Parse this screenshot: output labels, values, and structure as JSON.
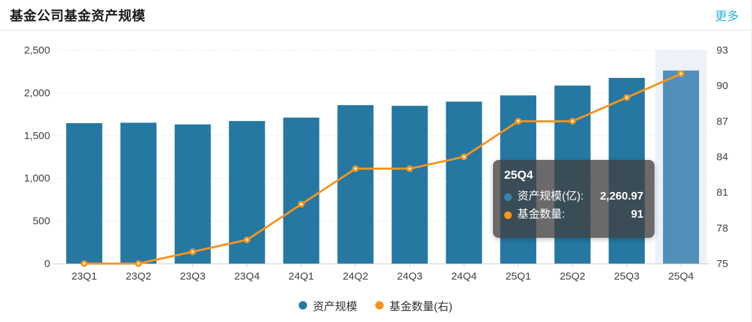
{
  "header": {
    "title": "基金公司基金资产规模",
    "more_label": "更多"
  },
  "colors": {
    "bar": "#2478a2",
    "bar_highlight": "#4f8fba",
    "highlight_band": "#edf2f8",
    "line": "#f7941e",
    "point_center": "#ffffff",
    "grid": "#dce3f3",
    "axis_line": "#cccccc",
    "axis_text": "#404040",
    "more_link": "#29b0d8",
    "tooltip_bar_dot": "#3186ad",
    "tooltip_line_dot": "#f7941e"
  },
  "chart_data": {
    "type": "bar+line combo",
    "categories": [
      "23Q1",
      "23Q2",
      "23Q3",
      "23Q4",
      "24Q1",
      "24Q2",
      "24Q3",
      "24Q4",
      "25Q1",
      "25Q2",
      "25Q3",
      "25Q4"
    ],
    "series": [
      {
        "name": "资产规模",
        "type": "bar",
        "axis": "left",
        "values": [
          1645,
          1650,
          1630,
          1670,
          1710,
          1856,
          1848,
          1897,
          1970,
          2085,
          2175,
          2260.97
        ]
      },
      {
        "name": "基金数量(右)",
        "type": "line",
        "axis": "right",
        "values": [
          75,
          75,
          76,
          77,
          80,
          83,
          83,
          84,
          87,
          87,
          89,
          91
        ]
      }
    ],
    "left_axis": {
      "min": 0,
      "max": 2500,
      "ticks": [
        {
          "value": 0,
          "label": "0"
        },
        {
          "value": 500,
          "label": "500"
        },
        {
          "value": 1000,
          "label": "1,000"
        },
        {
          "value": 1500,
          "label": "1,500"
        },
        {
          "value": 2000,
          "label": "2,000"
        },
        {
          "value": 2500,
          "label": "2,500"
        }
      ]
    },
    "right_axis": {
      "min": 75,
      "max": 93,
      "ticks": [
        {
          "value": 75,
          "label": "75"
        },
        {
          "value": 78,
          "label": "78"
        },
        {
          "value": 81,
          "label": "81"
        },
        {
          "value": 84,
          "label": "84"
        },
        {
          "value": 87,
          "label": "87"
        },
        {
          "value": 90,
          "label": "90"
        },
        {
          "value": 93,
          "label": "93"
        }
      ]
    },
    "highlight_index": 11,
    "grid": "dotted horizontal",
    "legend_position": "bottom-center"
  },
  "tooltip": {
    "title": "25Q4",
    "rows": [
      {
        "label": "资产规模(亿):",
        "value": "2,260.97"
      },
      {
        "label": "基金数量:",
        "value": "91"
      }
    ]
  },
  "legend": {
    "items": [
      {
        "label": "资产规模",
        "color": "#2478a2"
      },
      {
        "label": "基金数量(右)",
        "color": "#f7941e"
      }
    ]
  }
}
